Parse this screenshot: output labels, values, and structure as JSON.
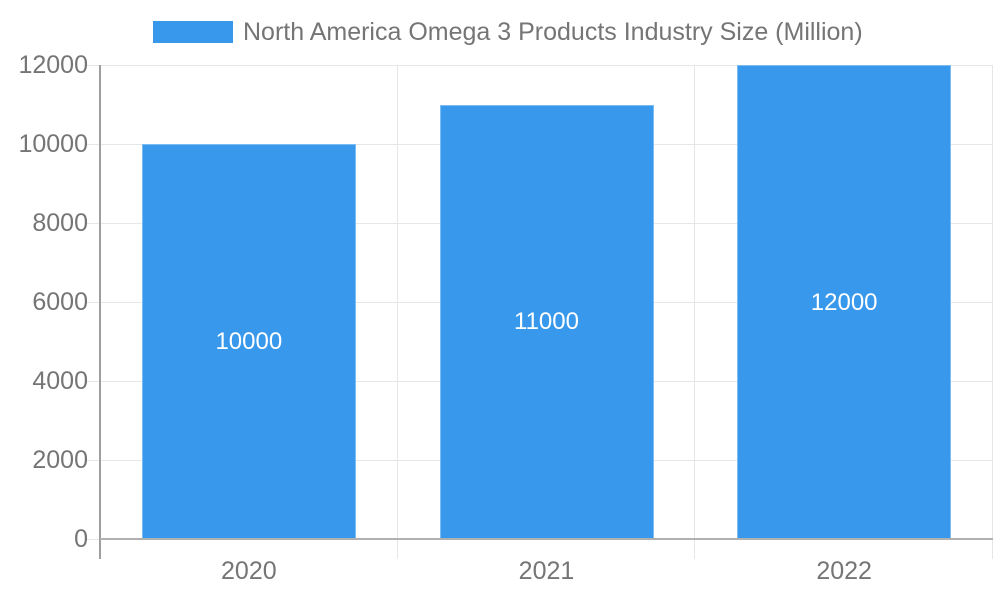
{
  "chart_data": {
    "type": "bar",
    "title": "",
    "legend_label": "North America Omega 3 Products Industry Size (Million)",
    "legend_position": "top",
    "categories": [
      "2020",
      "2021",
      "2022"
    ],
    "values": [
      10000,
      11000,
      12000
    ],
    "bar_labels": [
      "10000",
      "11000",
      "12000"
    ],
    "xlabel": "",
    "ylabel": "",
    "ylim": [
      0,
      12000
    ],
    "yticks": [
      0,
      2000,
      4000,
      6000,
      8000,
      10000,
      12000
    ],
    "grid": true,
    "colors": {
      "bar": "#3898EC",
      "bar_value_text": "#ffffff",
      "axis_text": "#757575",
      "legend_text": "#757575",
      "gridline": "#e6e6e6",
      "axis_line": "#9e9e9e",
      "baseline": "#b0b0b0"
    }
  }
}
